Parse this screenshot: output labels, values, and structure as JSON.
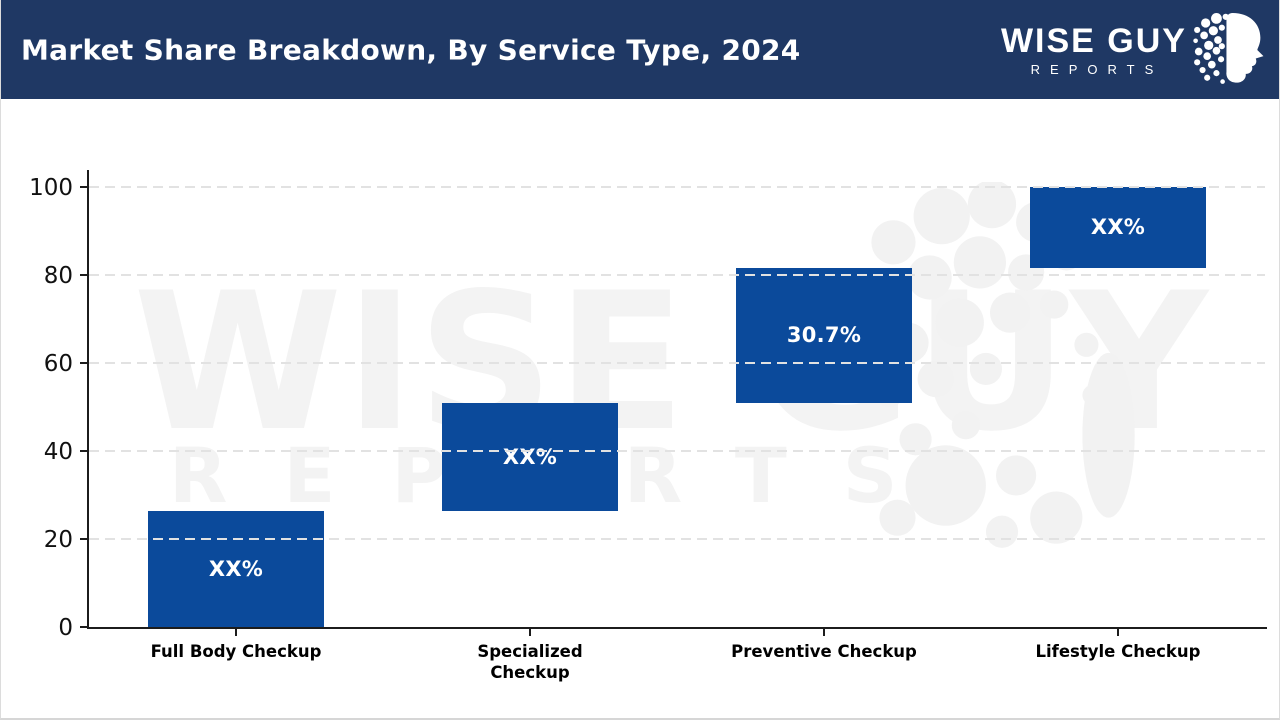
{
  "header": {
    "title": "Market Share Breakdown, By Service Type, 2024",
    "bg_color": "#1f3864",
    "logo": {
      "line1": "WISE GUY",
      "line2": "REPORTS"
    }
  },
  "watermark": {
    "line1": "WISE GUY",
    "line2": "REPORTS"
  },
  "colors": {
    "header_bg": "#1f3864",
    "bar": "#0b4a9b",
    "bar_label": "#ffffff",
    "axis": "#1c1c1c",
    "watermark": "#f3f3f3"
  },
  "chart_data": {
    "type": "bar",
    "subtype": "waterfall",
    "title": "Market Share Breakdown, By Service Type, 2024",
    "categories": [
      "Full Body Checkup",
      "Specialized\nCheckup",
      "Preventive Checkup",
      "Lifestyle Checkup"
    ],
    "segments": [
      {
        "category": "Full Body Checkup",
        "start": 0,
        "end": 26.4,
        "value": 26.4,
        "label": "XX%"
      },
      {
        "category": "Specialized Checkup",
        "start": 26.4,
        "end": 51.0,
        "value": 24.6,
        "label": "XX%"
      },
      {
        "category": "Preventive Checkup",
        "start": 51.0,
        "end": 81.7,
        "value": 30.7,
        "label": "30.7%"
      },
      {
        "category": "Lifestyle Checkup",
        "start": 81.7,
        "end": 100.0,
        "value": 18.3,
        "label": "XX%"
      }
    ],
    "xlabel": "",
    "ylabel": "",
    "ylim": [
      0,
      100
    ],
    "yticks": [
      0,
      20,
      40,
      60,
      80,
      100
    ],
    "grid": "horizontal-dashed-over-bars",
    "legend": "none",
    "bar_color": "#0b4a9b",
    "bar_label_color": "#ffffff",
    "bar_width_fraction": 0.6
  }
}
